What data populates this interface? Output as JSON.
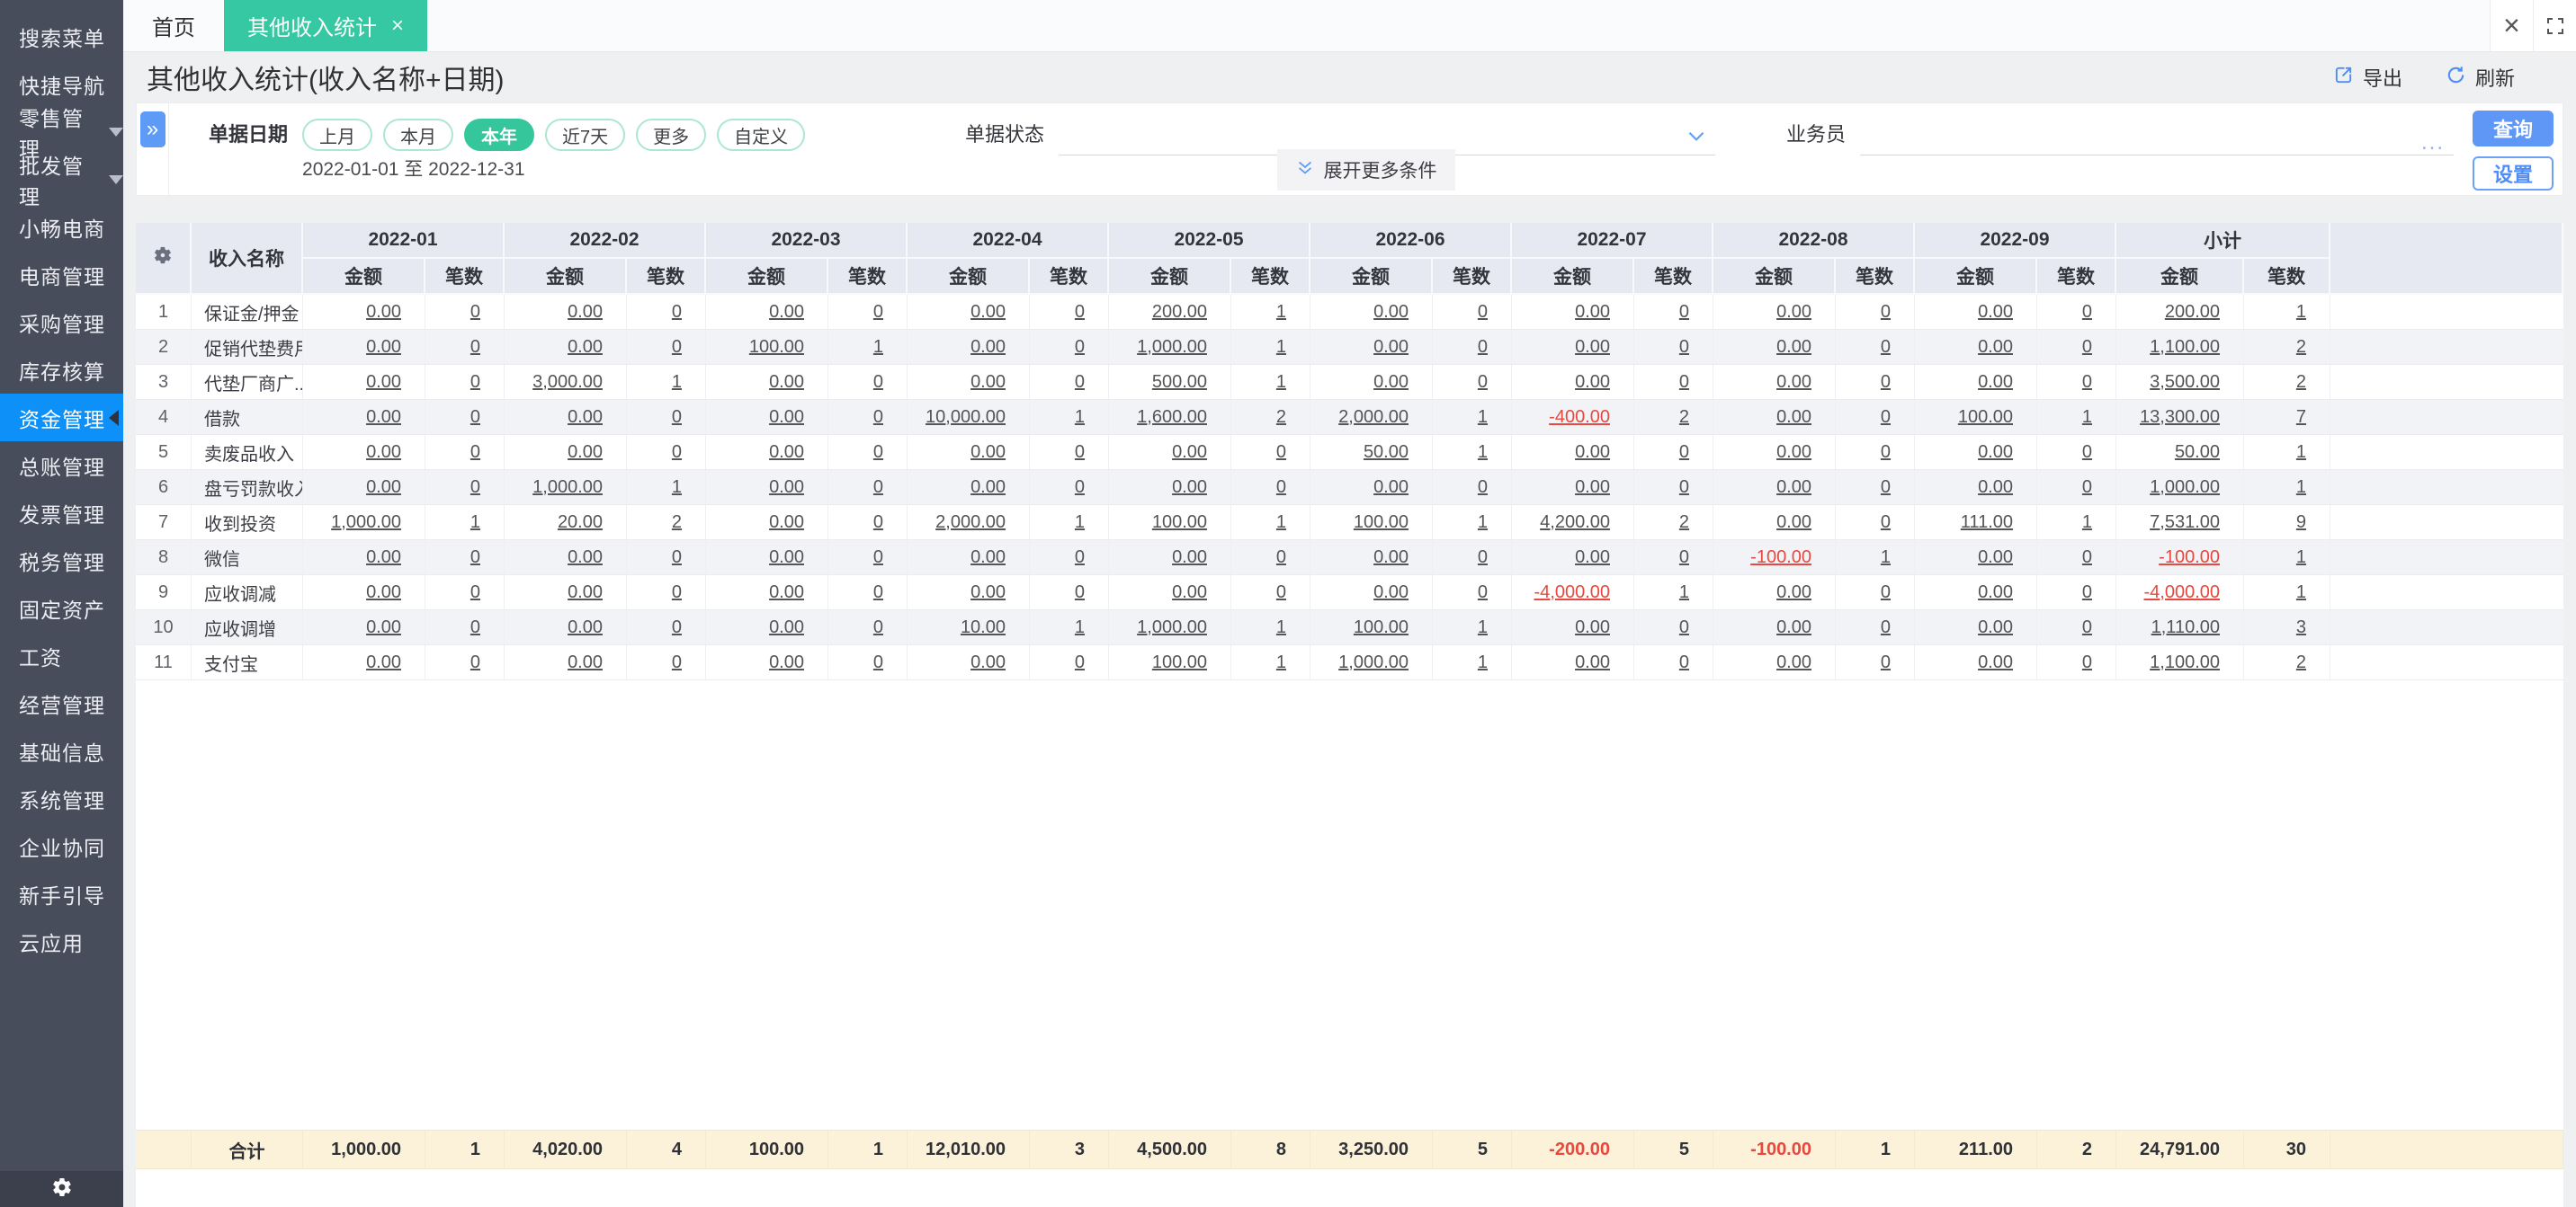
{
  "colors": {
    "sidebar_bg": "#474d5a",
    "sidebar_active_blue": "#0e90f9",
    "tab_green": "#35c8a2",
    "primary_button_blue": "#5e97f5",
    "link_blue": "#4f8ef7",
    "negative_red": "#e8483d",
    "table_header_bg": "#e7e9f2",
    "totals_row_bg": "#fcf2da"
  },
  "sidebar": {
    "items": [
      {
        "label": "搜索菜单"
      },
      {
        "label": "快捷导航"
      },
      {
        "label": "零售管理",
        "caret": true
      },
      {
        "label": "批发管理",
        "caret": true
      },
      {
        "label": "小畅电商"
      },
      {
        "label": "电商管理"
      },
      {
        "label": "采购管理"
      },
      {
        "label": "库存核算"
      },
      {
        "label": "资金管理",
        "active": true
      },
      {
        "label": "总账管理"
      },
      {
        "label": "发票管理"
      },
      {
        "label": "税务管理"
      },
      {
        "label": "固定资产"
      },
      {
        "label": "工资"
      },
      {
        "label": "经营管理"
      },
      {
        "label": "基础信息"
      },
      {
        "label": "系统管理"
      },
      {
        "label": "企业协同"
      },
      {
        "label": "新手引导"
      },
      {
        "label": "云应用"
      }
    ],
    "footer_icon": "gear-icon"
  },
  "tabs": {
    "home": "首页",
    "active": "其他收入统计",
    "close": "×",
    "window_close": "×",
    "window_fullscreen_icon": "fullscreen-icon"
  },
  "header": {
    "title": "其他收入统计(收入名称+日期)",
    "export_label": "导出",
    "refresh_label": "刷新"
  },
  "filters": {
    "collapse_icon": "»",
    "date_label": "单据日期",
    "date_pills": [
      "上月",
      "本月",
      "本年",
      "近7天",
      "更多",
      "自定义"
    ],
    "active_pill_index": 2,
    "date_range": "2022-01-01 至 2022-12-31",
    "status_label": "单据状态",
    "salesman_label": "业务员",
    "salesman_ellipsis": "...",
    "expand_more": "展开更多条件",
    "search_button": "查询",
    "settings_button": "设置"
  },
  "table": {
    "settings_icon": "gear-icon",
    "name_header": "收入名称",
    "amount_header": "金额",
    "count_header": "笔数",
    "months": [
      "2022-01",
      "2022-02",
      "2022-03",
      "2022-04",
      "2022-05",
      "2022-06",
      "2022-07",
      "2022-08",
      "2022-09",
      "小计"
    ],
    "rows": [
      {
        "no": "1",
        "name": "保证金/押金",
        "cells": [
          [
            "0.00",
            "0"
          ],
          [
            "0.00",
            "0"
          ],
          [
            "0.00",
            "0"
          ],
          [
            "0.00",
            "0"
          ],
          [
            "200.00",
            "1"
          ],
          [
            "0.00",
            "0"
          ],
          [
            "0.00",
            "0"
          ],
          [
            "0.00",
            "0"
          ],
          [
            "0.00",
            "0"
          ],
          [
            "200.00",
            "1"
          ]
        ]
      },
      {
        "no": "2",
        "name": "促销代垫费用",
        "cells": [
          [
            "0.00",
            "0"
          ],
          [
            "0.00",
            "0"
          ],
          [
            "100.00",
            "1"
          ],
          [
            "0.00",
            "0"
          ],
          [
            "1,000.00",
            "1"
          ],
          [
            "0.00",
            "0"
          ],
          [
            "0.00",
            "0"
          ],
          [
            "0.00",
            "0"
          ],
          [
            "0.00",
            "0"
          ],
          [
            "1,100.00",
            "2"
          ]
        ]
      },
      {
        "no": "3",
        "name": "代垫厂商广...",
        "cells": [
          [
            "0.00",
            "0"
          ],
          [
            "3,000.00",
            "1"
          ],
          [
            "0.00",
            "0"
          ],
          [
            "0.00",
            "0"
          ],
          [
            "500.00",
            "1"
          ],
          [
            "0.00",
            "0"
          ],
          [
            "0.00",
            "0"
          ],
          [
            "0.00",
            "0"
          ],
          [
            "0.00",
            "0"
          ],
          [
            "3,500.00",
            "2"
          ]
        ]
      },
      {
        "no": "4",
        "name": "借款",
        "cells": [
          [
            "0.00",
            "0"
          ],
          [
            "0.00",
            "0"
          ],
          [
            "0.00",
            "0"
          ],
          [
            "10,000.00",
            "1"
          ],
          [
            "1,600.00",
            "2"
          ],
          [
            "2,000.00",
            "1"
          ],
          [
            "-400.00",
            "2"
          ],
          [
            "0.00",
            "0"
          ],
          [
            "100.00",
            "1"
          ],
          [
            "13,300.00",
            "7"
          ]
        ]
      },
      {
        "no": "5",
        "name": "卖废品收入",
        "cells": [
          [
            "0.00",
            "0"
          ],
          [
            "0.00",
            "0"
          ],
          [
            "0.00",
            "0"
          ],
          [
            "0.00",
            "0"
          ],
          [
            "0.00",
            "0"
          ],
          [
            "50.00",
            "1"
          ],
          [
            "0.00",
            "0"
          ],
          [
            "0.00",
            "0"
          ],
          [
            "0.00",
            "0"
          ],
          [
            "50.00",
            "1"
          ]
        ]
      },
      {
        "no": "6",
        "name": "盘亏罚款收入",
        "cells": [
          [
            "0.00",
            "0"
          ],
          [
            "1,000.00",
            "1"
          ],
          [
            "0.00",
            "0"
          ],
          [
            "0.00",
            "0"
          ],
          [
            "0.00",
            "0"
          ],
          [
            "0.00",
            "0"
          ],
          [
            "0.00",
            "0"
          ],
          [
            "0.00",
            "0"
          ],
          [
            "0.00",
            "0"
          ],
          [
            "1,000.00",
            "1"
          ]
        ]
      },
      {
        "no": "7",
        "name": "收到投资",
        "cells": [
          [
            "1,000.00",
            "1"
          ],
          [
            "20.00",
            "2"
          ],
          [
            "0.00",
            "0"
          ],
          [
            "2,000.00",
            "1"
          ],
          [
            "100.00",
            "1"
          ],
          [
            "100.00",
            "1"
          ],
          [
            "4,200.00",
            "2"
          ],
          [
            "0.00",
            "0"
          ],
          [
            "111.00",
            "1"
          ],
          [
            "7,531.00",
            "9"
          ]
        ]
      },
      {
        "no": "8",
        "name": "微信",
        "cells": [
          [
            "0.00",
            "0"
          ],
          [
            "0.00",
            "0"
          ],
          [
            "0.00",
            "0"
          ],
          [
            "0.00",
            "0"
          ],
          [
            "0.00",
            "0"
          ],
          [
            "0.00",
            "0"
          ],
          [
            "0.00",
            "0"
          ],
          [
            "-100.00",
            "1"
          ],
          [
            "0.00",
            "0"
          ],
          [
            "-100.00",
            "1"
          ]
        ]
      },
      {
        "no": "9",
        "name": "应收调减",
        "cells": [
          [
            "0.00",
            "0"
          ],
          [
            "0.00",
            "0"
          ],
          [
            "0.00",
            "0"
          ],
          [
            "0.00",
            "0"
          ],
          [
            "0.00",
            "0"
          ],
          [
            "0.00",
            "0"
          ],
          [
            "-4,000.00",
            "1"
          ],
          [
            "0.00",
            "0"
          ],
          [
            "0.00",
            "0"
          ],
          [
            "-4,000.00",
            "1"
          ]
        ]
      },
      {
        "no": "10",
        "name": "应收调增",
        "cells": [
          [
            "0.00",
            "0"
          ],
          [
            "0.00",
            "0"
          ],
          [
            "0.00",
            "0"
          ],
          [
            "10.00",
            "1"
          ],
          [
            "1,000.00",
            "1"
          ],
          [
            "100.00",
            "1"
          ],
          [
            "0.00",
            "0"
          ],
          [
            "0.00",
            "0"
          ],
          [
            "0.00",
            "0"
          ],
          [
            "1,110.00",
            "3"
          ]
        ]
      },
      {
        "no": "11",
        "name": "支付宝",
        "cells": [
          [
            "0.00",
            "0"
          ],
          [
            "0.00",
            "0"
          ],
          [
            "0.00",
            "0"
          ],
          [
            "0.00",
            "0"
          ],
          [
            "100.00",
            "1"
          ],
          [
            "1,000.00",
            "1"
          ],
          [
            "0.00",
            "0"
          ],
          [
            "0.00",
            "0"
          ],
          [
            "0.00",
            "0"
          ],
          [
            "1,100.00",
            "2"
          ]
        ]
      }
    ],
    "total_label": "合计",
    "totals": [
      [
        "1,000.00",
        "1"
      ],
      [
        "4,020.00",
        "4"
      ],
      [
        "100.00",
        "1"
      ],
      [
        "12,010.00",
        "3"
      ],
      [
        "4,500.00",
        "8"
      ],
      [
        "3,250.00",
        "5"
      ],
      [
        "-200.00",
        "5"
      ],
      [
        "-100.00",
        "1"
      ],
      [
        "211.00",
        "2"
      ],
      [
        "24,791.00",
        "30"
      ]
    ]
  }
}
